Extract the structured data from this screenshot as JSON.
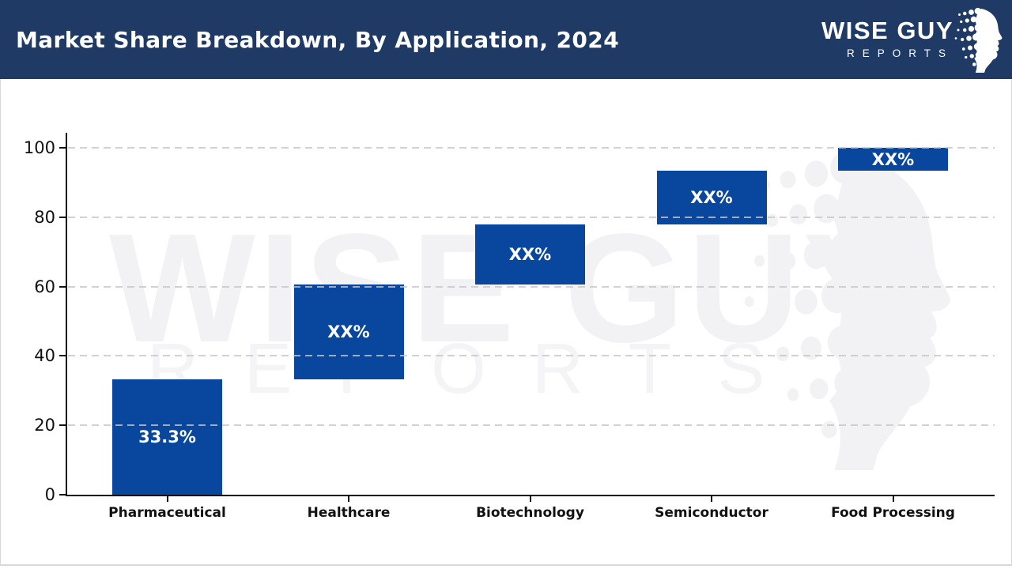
{
  "header": {
    "title": "Market Share Breakdown, By Application, 2024",
    "bg_color": "#203a66",
    "logo": {
      "wordmark": "WISE GUY",
      "subtitle": "REPORTS"
    }
  },
  "watermark": {
    "line1": "WISE GUY",
    "line2": "REPORTS"
  },
  "chart_data": {
    "type": "bar",
    "subtype": "waterfall",
    "title": "Market Share Breakdown, By Application, 2024",
    "categories": [
      "Pharmaceutical",
      "Healthcare",
      "Biotechnology",
      "Semiconductor",
      "Food Processing"
    ],
    "series": [
      {
        "name": "Market share",
        "segments": [
          {
            "category": "Pharmaceutical",
            "start": 0,
            "end": 33.3,
            "label": "33.3%"
          },
          {
            "category": "Healthcare",
            "start": 33.3,
            "end": 60.7,
            "label": "XX%"
          },
          {
            "category": "Biotechnology",
            "start": 60.7,
            "end": 78.0,
            "label": "XX%"
          },
          {
            "category": "Semiconductor",
            "start": 78.0,
            "end": 93.3,
            "label": "XX%"
          },
          {
            "category": "Food Processing",
            "start": 93.3,
            "end": 100.0,
            "label": "XX%"
          }
        ]
      }
    ],
    "xlabel": "",
    "ylabel": "",
    "yticks": [
      0,
      20,
      40,
      60,
      80,
      100
    ],
    "ylim": [
      0,
      104
    ],
    "grid": "horizontal-dashed",
    "legend": "none",
    "bar_color": "#09479e",
    "bar_label_color": "#ffffff"
  }
}
